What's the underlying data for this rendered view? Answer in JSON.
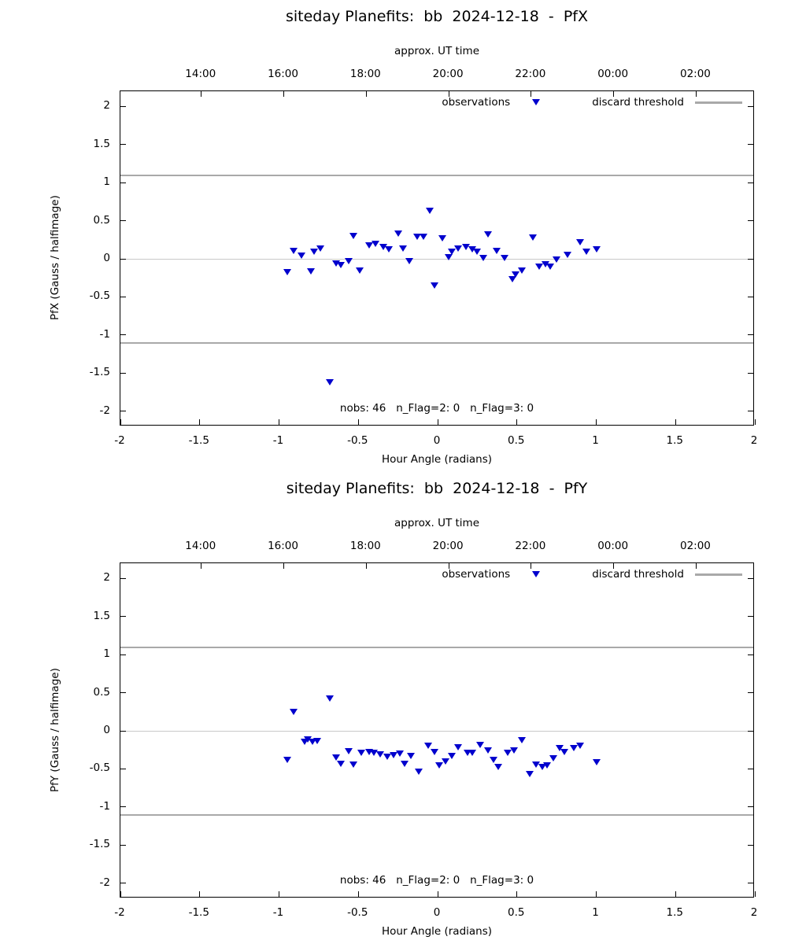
{
  "colors": {
    "marker": "#0000cd",
    "threshold": "#a9a9a9",
    "zero": "#c9c9c9"
  },
  "chart_data": [
    {
      "type": "scatter",
      "title": "siteday Planefits:  bb  2024-12-18  -  PfX",
      "top_axis_label": "approx. UT time",
      "top_ticks": [
        {
          "label": "14:00",
          "x": -1.49
        },
        {
          "label": "16:00",
          "x": -0.97
        },
        {
          "label": "18:00",
          "x": -0.45
        },
        {
          "label": "20:00",
          "x": 0.07
        },
        {
          "label": "22:00",
          "x": 0.59
        },
        {
          "label": "00:00",
          "x": 1.11
        },
        {
          "label": "02:00",
          "x": 1.63
        }
      ],
      "xlabel": "Hour Angle (radians)",
      "ylabel": "PfX (Gauss / halfimage)",
      "xlim": [
        -2,
        2
      ],
      "ylim": [
        -2.2,
        2.2
      ],
      "xticks": [
        {
          "label": "-2",
          "v": -2
        },
        {
          "label": "-1.5",
          "v": -1.5
        },
        {
          "label": "-1",
          "v": -1
        },
        {
          "label": "-0.5",
          "v": -0.5
        },
        {
          "label": "0",
          "v": 0
        },
        {
          "label": "0.5",
          "v": 0.5
        },
        {
          "label": "1",
          "v": 1
        },
        {
          "label": "1.5",
          "v": 1.5
        },
        {
          "label": "2",
          "v": 2
        }
      ],
      "yticks": [
        {
          "label": "2",
          "v": 2
        },
        {
          "label": "1.5",
          "v": 1.5
        },
        {
          "label": "1",
          "v": 1
        },
        {
          "label": "0.5",
          "v": 0.5
        },
        {
          "label": "0",
          "v": 0
        },
        {
          "label": "-0.5",
          "v": -0.5
        },
        {
          "label": "-1",
          "v": -1
        },
        {
          "label": "-1.5",
          "v": -1.5
        },
        {
          "label": "-2",
          "v": -2
        }
      ],
      "threshold": 1.1,
      "legend": {
        "observations": "observations",
        "threshold": "discard threshold"
      },
      "annotation": "nobs: 46   n_Flag=2: 0   n_Flag=3: 0",
      "points": [
        [
          -0.95,
          -0.18
        ],
        [
          -0.91,
          0.1
        ],
        [
          -0.86,
          0.04
        ],
        [
          -0.8,
          -0.17
        ],
        [
          -0.78,
          0.09
        ],
        [
          -0.74,
          0.13
        ],
        [
          -0.68,
          -1.62
        ],
        [
          -0.64,
          -0.06
        ],
        [
          -0.61,
          -0.08
        ],
        [
          -0.56,
          -0.03
        ],
        [
          -0.53,
          0.3
        ],
        [
          -0.49,
          -0.16
        ],
        [
          -0.43,
          0.18
        ],
        [
          -0.39,
          0.2
        ],
        [
          -0.34,
          0.15
        ],
        [
          -0.31,
          0.12
        ],
        [
          -0.25,
          0.33
        ],
        [
          -0.22,
          0.13
        ],
        [
          -0.18,
          -0.03
        ],
        [
          -0.13,
          0.29
        ],
        [
          -0.09,
          0.29
        ],
        [
          -0.05,
          0.63
        ],
        [
          -0.02,
          -0.35
        ],
        [
          0.03,
          0.27
        ],
        [
          0.07,
          0.02
        ],
        [
          0.09,
          0.09
        ],
        [
          0.13,
          0.13
        ],
        [
          0.18,
          0.15
        ],
        [
          0.22,
          0.12
        ],
        [
          0.25,
          0.09
        ],
        [
          0.29,
          0.01
        ],
        [
          0.32,
          0.32
        ],
        [
          0.37,
          0.1
        ],
        [
          0.42,
          0.01
        ],
        [
          0.47,
          -0.27
        ],
        [
          0.49,
          -0.21
        ],
        [
          0.53,
          -0.16
        ],
        [
          0.6,
          0.28
        ],
        [
          0.64,
          -0.1
        ],
        [
          0.68,
          -0.07
        ],
        [
          0.71,
          -0.1
        ],
        [
          0.75,
          -0.01
        ],
        [
          0.82,
          0.05
        ],
        [
          0.9,
          0.22
        ],
        [
          0.94,
          0.09
        ],
        [
          1.0,
          0.12
        ]
      ]
    },
    {
      "type": "scatter",
      "title": "siteday Planefits:  bb  2024-12-18  -  PfY",
      "top_axis_label": "approx. UT time",
      "top_ticks": [
        {
          "label": "14:00",
          "x": -1.49
        },
        {
          "label": "16:00",
          "x": -0.97
        },
        {
          "label": "18:00",
          "x": -0.45
        },
        {
          "label": "20:00",
          "x": 0.07
        },
        {
          "label": "22:00",
          "x": 0.59
        },
        {
          "label": "00:00",
          "x": 1.11
        },
        {
          "label": "02:00",
          "x": 1.63
        }
      ],
      "xlabel": "Hour Angle (radians)",
      "ylabel": "PfY (Gauss / halfimage)",
      "xlim": [
        -2,
        2
      ],
      "ylim": [
        -2.2,
        2.2
      ],
      "xticks": [
        {
          "label": "-2",
          "v": -2
        },
        {
          "label": "-1.5",
          "v": -1.5
        },
        {
          "label": "-1",
          "v": -1
        },
        {
          "label": "-0.5",
          "v": -0.5
        },
        {
          "label": "0",
          "v": 0
        },
        {
          "label": "0.5",
          "v": 0.5
        },
        {
          "label": "1",
          "v": 1
        },
        {
          "label": "1.5",
          "v": 1.5
        },
        {
          "label": "2",
          "v": 2
        }
      ],
      "yticks": [
        {
          "label": "2",
          "v": 2
        },
        {
          "label": "1.5",
          "v": 1.5
        },
        {
          "label": "1",
          "v": 1
        },
        {
          "label": "0.5",
          "v": 0.5
        },
        {
          "label": "0",
          "v": 0
        },
        {
          "label": "-0.5",
          "v": -0.5
        },
        {
          "label": "-1",
          "v": -1
        },
        {
          "label": "-1.5",
          "v": -1.5
        },
        {
          "label": "-2",
          "v": -2
        }
      ],
      "threshold": 1.1,
      "legend": {
        "observations": "observations",
        "threshold": "discard threshold"
      },
      "annotation": "nobs: 46   n_Flag=2: 0   n_Flag=3: 0",
      "points": [
        [
          -0.95,
          -0.38
        ],
        [
          -0.91,
          0.25
        ],
        [
          -0.84,
          -0.14
        ],
        [
          -0.82,
          -0.11
        ],
        [
          -0.79,
          -0.14
        ],
        [
          -0.76,
          -0.13
        ],
        [
          -0.68,
          0.42
        ],
        [
          -0.64,
          -0.35
        ],
        [
          -0.61,
          -0.43
        ],
        [
          -0.56,
          -0.27
        ],
        [
          -0.53,
          -0.44
        ],
        [
          -0.48,
          -0.29
        ],
        [
          -0.43,
          -0.28
        ],
        [
          -0.4,
          -0.29
        ],
        [
          -0.36,
          -0.31
        ],
        [
          -0.32,
          -0.34
        ],
        [
          -0.28,
          -0.32
        ],
        [
          -0.24,
          -0.3
        ],
        [
          -0.21,
          -0.43
        ],
        [
          -0.17,
          -0.33
        ],
        [
          -0.12,
          -0.54
        ],
        [
          -0.06,
          -0.2
        ],
        [
          -0.02,
          -0.28
        ],
        [
          0.01,
          -0.45
        ],
        [
          0.05,
          -0.4
        ],
        [
          0.09,
          -0.33
        ],
        [
          0.13,
          -0.22
        ],
        [
          0.19,
          -0.29
        ],
        [
          0.22,
          -0.29
        ],
        [
          0.27,
          -0.19
        ],
        [
          0.32,
          -0.26
        ],
        [
          0.35,
          -0.38
        ],
        [
          0.38,
          -0.48
        ],
        [
          0.44,
          -0.29
        ],
        [
          0.48,
          -0.26
        ],
        [
          0.53,
          -0.12
        ],
        [
          0.58,
          -0.57
        ],
        [
          0.62,
          -0.44
        ],
        [
          0.66,
          -0.47
        ],
        [
          0.69,
          -0.45
        ],
        [
          0.73,
          -0.36
        ],
        [
          0.77,
          -0.23
        ],
        [
          0.8,
          -0.28
        ],
        [
          0.86,
          -0.23
        ],
        [
          0.9,
          -0.2
        ],
        [
          1.0,
          -0.41
        ]
      ]
    }
  ]
}
